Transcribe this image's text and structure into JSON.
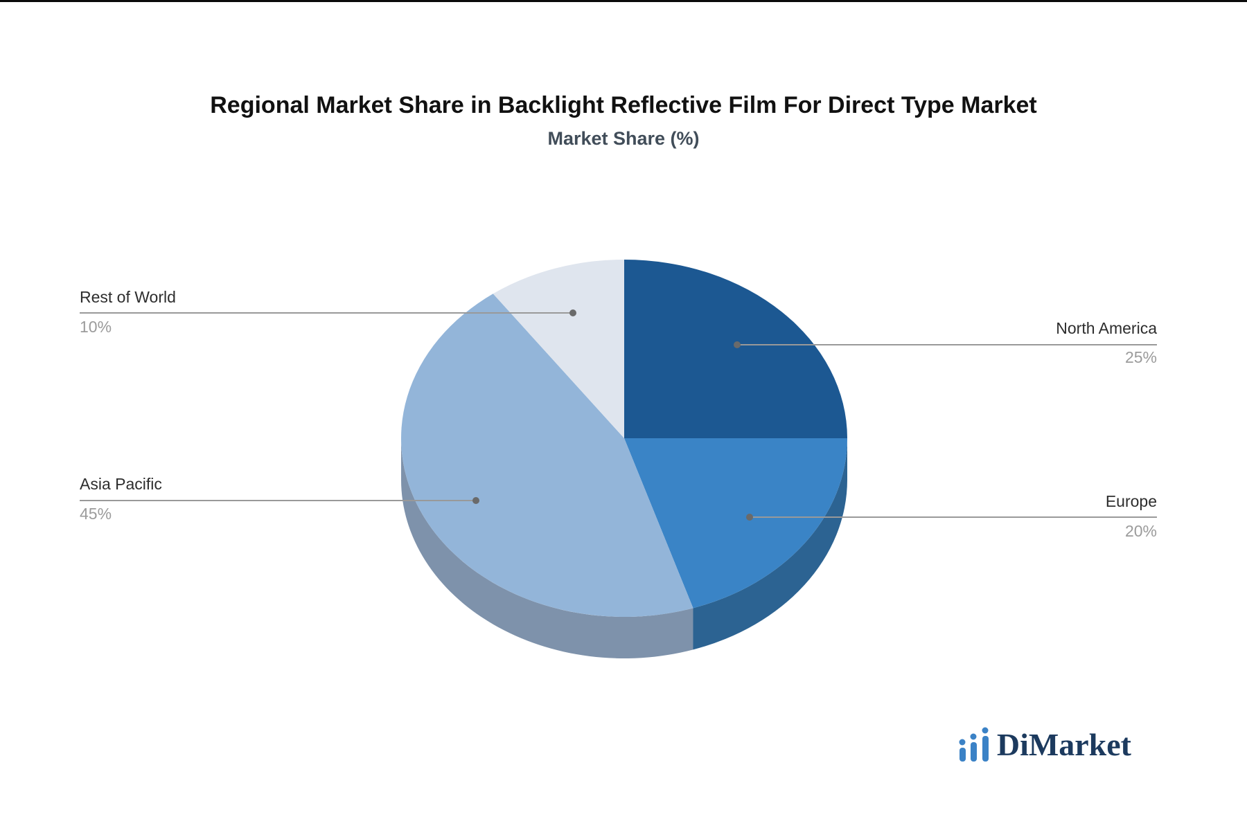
{
  "page": {
    "background": "#ffffff",
    "top_edge_color": "#0a0a0a"
  },
  "chart_data": {
    "type": "pie",
    "title": "Regional Market Share in Backlight Reflective Film For Direct Type Market",
    "subtitle": "Market Share (%)",
    "unit": "%",
    "start_angle_deg": 0,
    "clockwise": true,
    "effect": "3d",
    "legend_position": "none",
    "series": [
      {
        "label": "North America",
        "value": 25,
        "pct_label": "25%",
        "color": "#1c5892"
      },
      {
        "label": "Europe",
        "value": 20,
        "pct_label": "20%",
        "color": "#3a84c6",
        "side_color": "#2c6392"
      },
      {
        "label": "Asia Pacific",
        "value": 45,
        "pct_label": "45%",
        "color": "#93b5d9",
        "side_color": "#7e92ab"
      },
      {
        "label": "Rest of World",
        "value": 10,
        "pct_label": "10%",
        "color": "#dfe5ee"
      }
    ],
    "style": {
      "leader_line_color": "#999999",
      "dot_color": "#6a6a6a",
      "label_color": "#2d2d2d",
      "pct_color": "#9b9b9b",
      "title_color": "#111111",
      "subtitle_color": "#414d59"
    }
  },
  "branding": {
    "logo_text": "DiMarket",
    "logo_text_color": "#1c3a5e",
    "logo_icon": "bar-chart-icon",
    "logo_icon_color": "#3b82c6"
  }
}
